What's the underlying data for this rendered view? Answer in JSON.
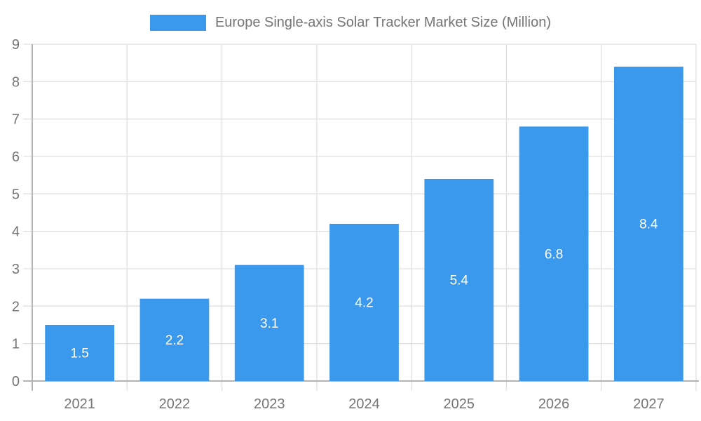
{
  "legend": {
    "position": "top",
    "label": "Europe Single-axis Solar Tracker Market Size (Million)"
  },
  "chart_data": {
    "type": "bar",
    "title": "Europe Single-axis Solar Tracker Market Size (Million)",
    "categories": [
      "2021",
      "2022",
      "2023",
      "2024",
      "2025",
      "2026",
      "2027"
    ],
    "values": [
      1.5,
      2.2,
      3.1,
      4.2,
      5.4,
      6.8,
      8.4
    ],
    "value_labels": [
      "1.5",
      "2.2",
      "3.1",
      "4.2",
      "5.4",
      "6.8",
      "8.4"
    ],
    "xlabel": "",
    "ylabel": "",
    "ylim": [
      0,
      9
    ],
    "ytick_step": 1,
    "grid": true,
    "legend_position": "top",
    "colors": {
      "bar": "#3B99ED",
      "grid": "#E0E0E0",
      "axis": "#B3B3B3",
      "label": "#757575",
      "value_label": "#FFFFFF",
      "background": "#FFFFFF"
    }
  }
}
